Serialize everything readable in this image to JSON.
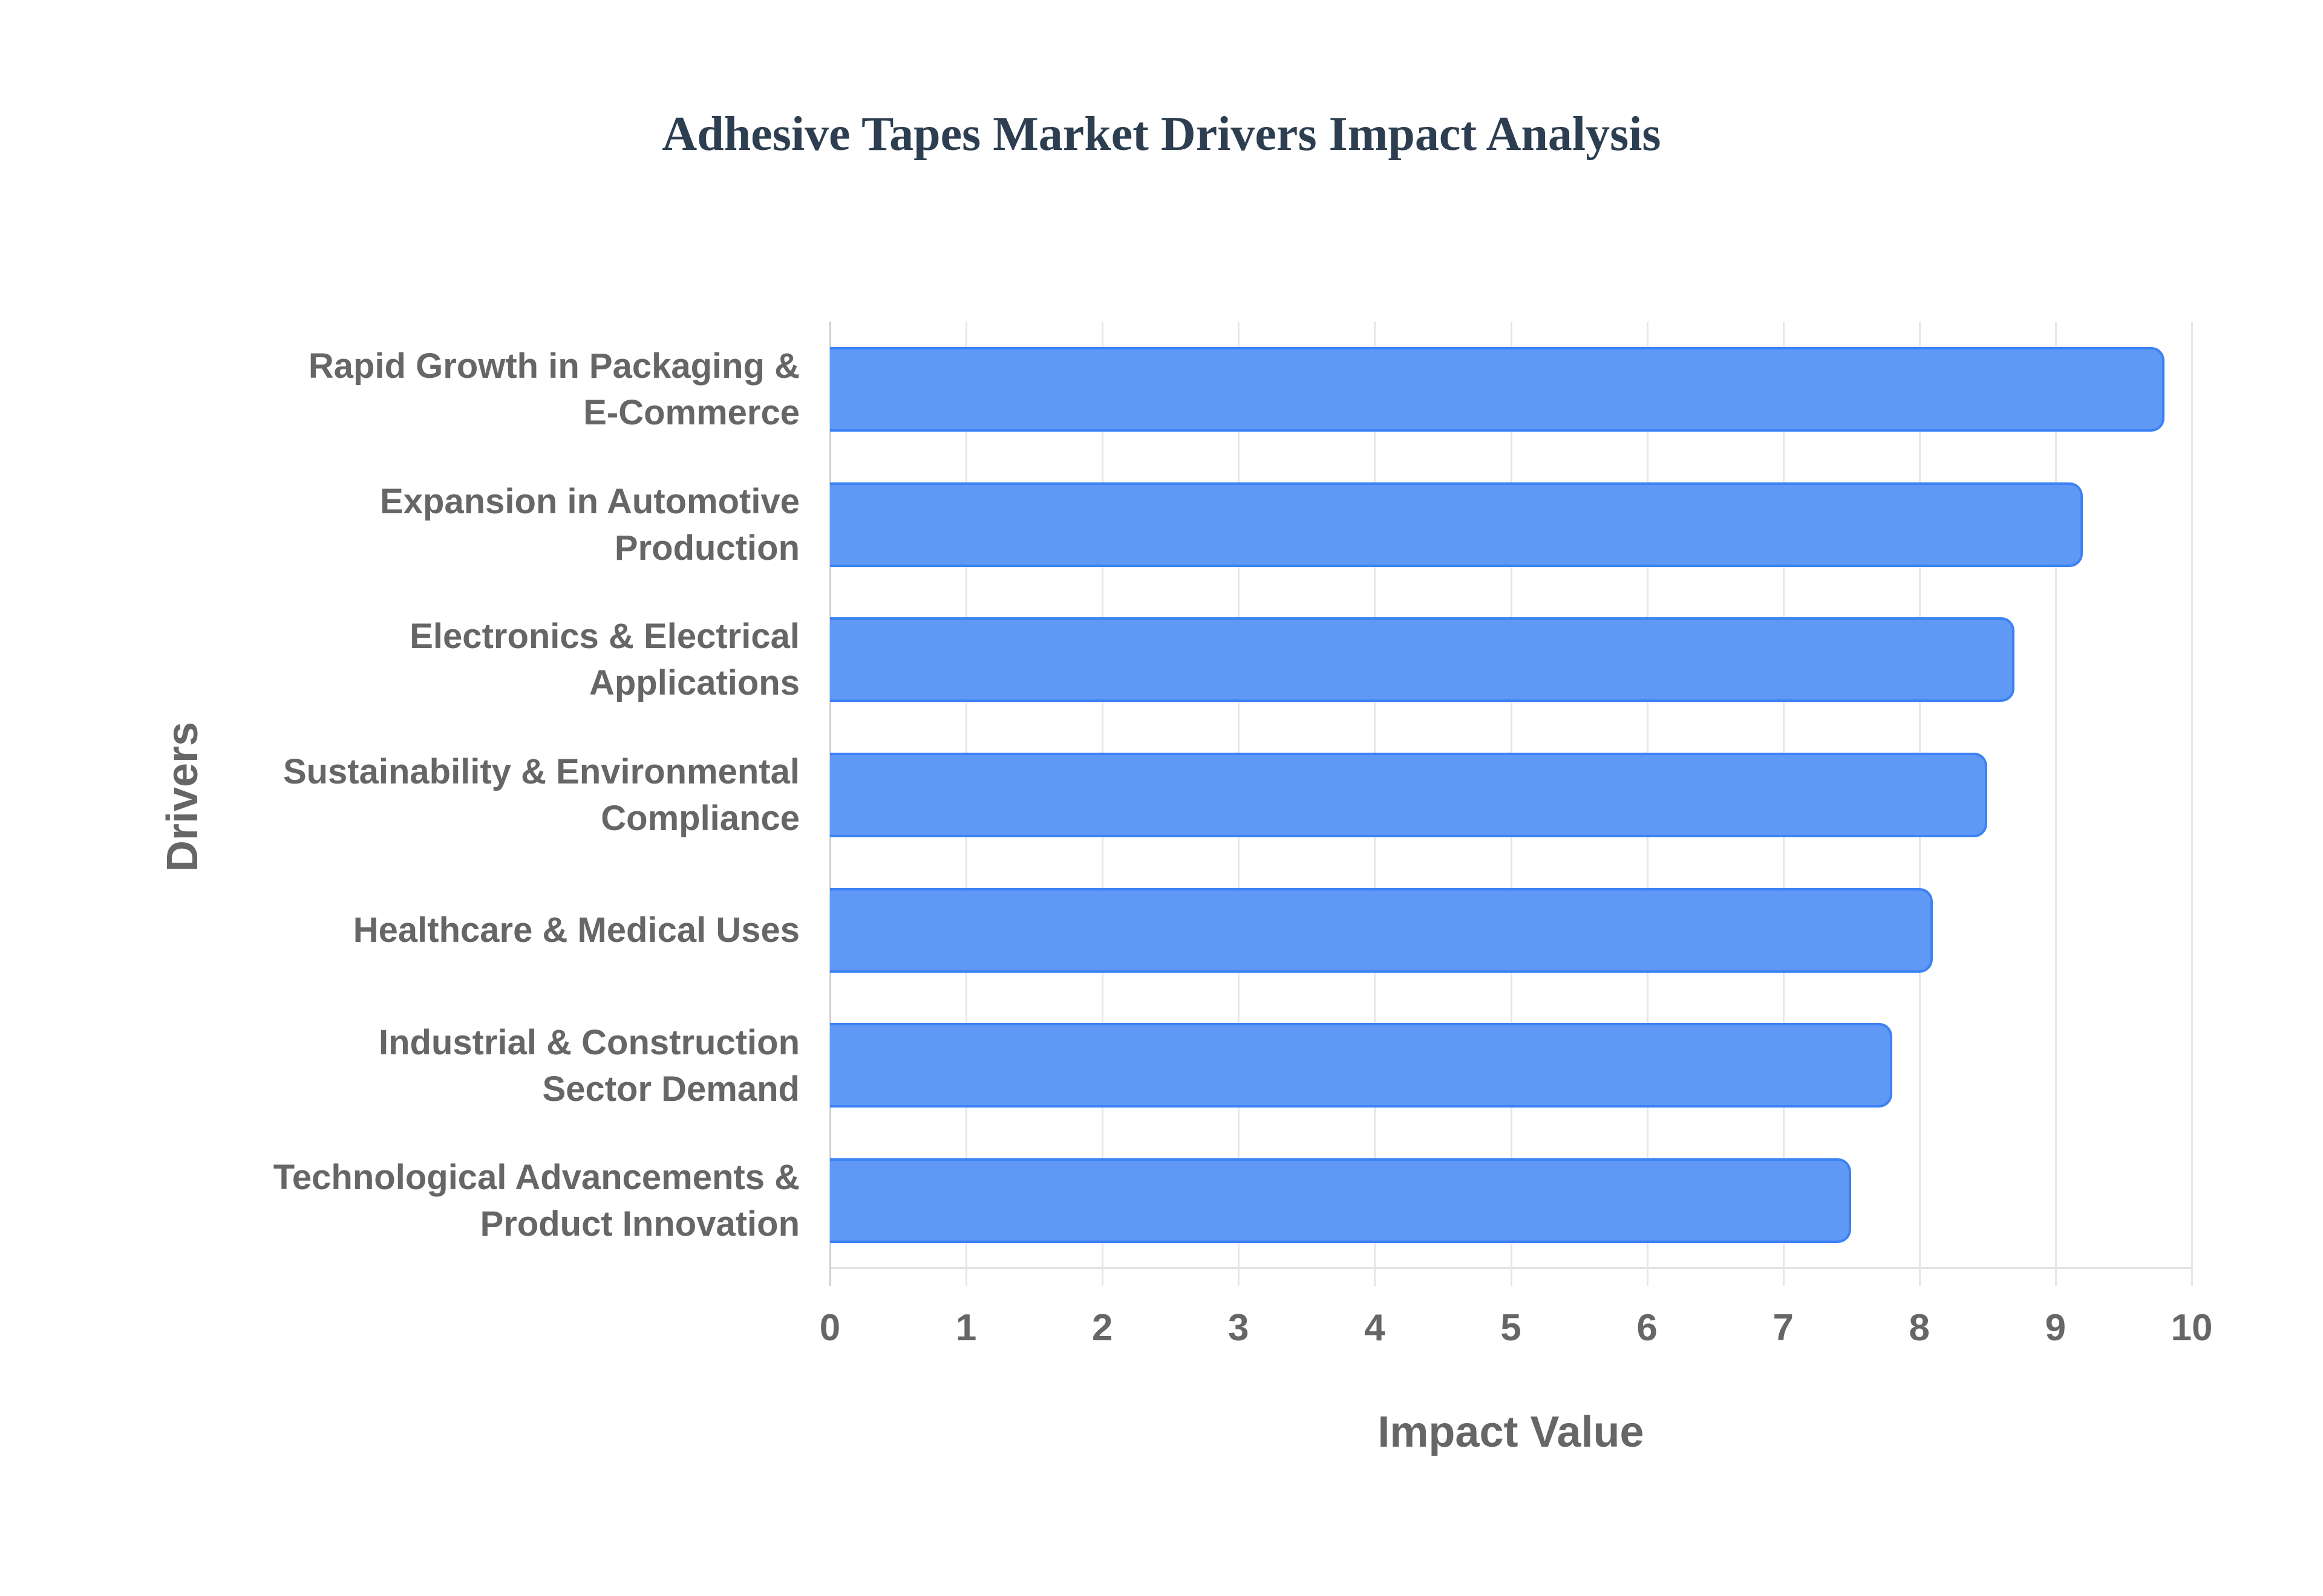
{
  "title": "Adhesive Tapes Market Drivers Impact Analysis",
  "colors": {
    "bar_fill": "#5f98f5",
    "bar_border": "#3b82f4",
    "title": "#2c3e50",
    "axis_text": "#666666",
    "grid": "#e6e6e6"
  },
  "axes": {
    "x_title": "Impact Value",
    "y_title": "Drivers",
    "x_ticks": [
      "0",
      "1",
      "2",
      "3",
      "4",
      "5",
      "6",
      "7",
      "8",
      "9",
      "10"
    ]
  },
  "categories": [
    {
      "lines": [
        "Rapid Growth in Packaging &",
        "E-Commerce"
      ]
    },
    {
      "lines": [
        "Expansion in Automotive",
        "Production"
      ]
    },
    {
      "lines": [
        "Electronics & Electrical",
        "Applications"
      ]
    },
    {
      "lines": [
        "Sustainability & Environmental",
        "Compliance"
      ]
    },
    {
      "lines": [
        "Healthcare & Medical Uses"
      ]
    },
    {
      "lines": [
        "Industrial & Construction",
        "Sector Demand"
      ]
    },
    {
      "lines": [
        "Technological Advancements &",
        "Product Innovation"
      ]
    }
  ],
  "chart_data": {
    "type": "bar",
    "orientation": "horizontal",
    "title": "Adhesive Tapes Market Drivers Impact Analysis",
    "xlabel": "Impact Value",
    "ylabel": "Drivers",
    "xlim": [
      0,
      10
    ],
    "x_ticks": [
      0,
      1,
      2,
      3,
      4,
      5,
      6,
      7,
      8,
      9,
      10
    ],
    "grid": true,
    "legend": null,
    "categories": [
      "Rapid Growth in Packaging & E-Commerce",
      "Expansion in Automotive Production",
      "Electronics & Electrical Applications",
      "Sustainability & Environmental Compliance",
      "Healthcare & Medical Uses",
      "Industrial & Construction Sector Demand",
      "Technological Advancements & Product Innovation"
    ],
    "values": [
      9.8,
      9.2,
      8.7,
      8.5,
      8.1,
      7.8,
      7.5
    ]
  }
}
